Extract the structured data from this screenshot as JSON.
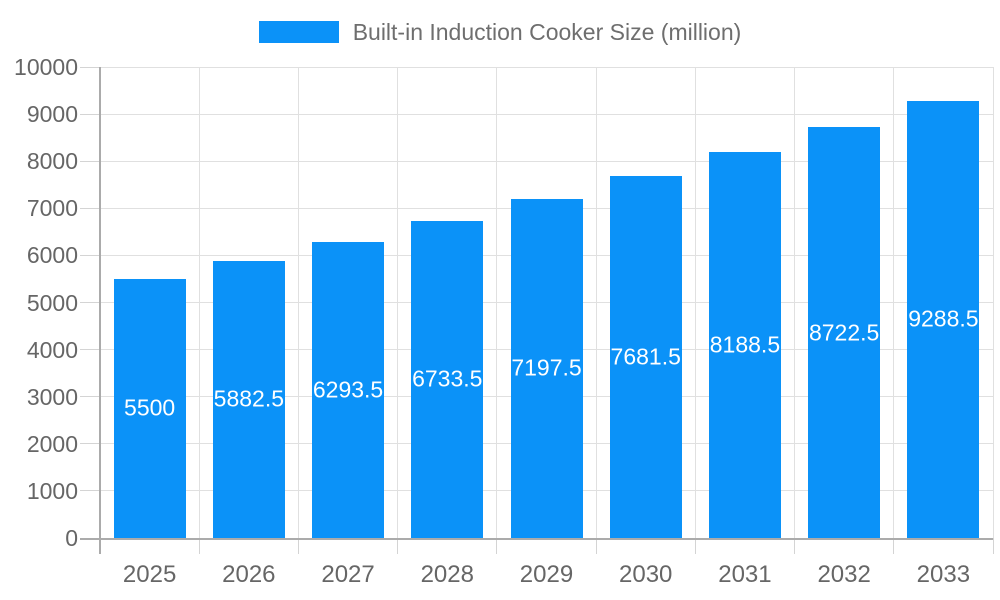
{
  "chart_data": {
    "type": "bar",
    "title": "Built-in Induction Cooker Size (million)",
    "categories": [
      "2025",
      "2026",
      "2027",
      "2028",
      "2029",
      "2030",
      "2031",
      "2032",
      "2033"
    ],
    "values": [
      5500,
      5882.5,
      6293.5,
      6733.5,
      7197.5,
      7681.5,
      8188.5,
      8722.5,
      9288.5
    ],
    "value_labels": [
      "5500",
      "5882.5",
      "6293.5",
      "6733.5",
      "7197.5",
      "7681.5",
      "8188.5",
      "8722.5",
      "9288.5"
    ],
    "ylim": [
      0,
      10000
    ],
    "yticks": [
      0,
      1000,
      2000,
      3000,
      4000,
      5000,
      6000,
      7000,
      8000,
      9000,
      10000
    ],
    "xlabel": "",
    "ylabel": "",
    "grid": true,
    "legend_position": "top",
    "value_label_position": "center-of-bar",
    "colors": {
      "bar": "#0b92f8",
      "grid": "#e0e0e0",
      "axis": "#ababab",
      "tick": "#d4d4d4",
      "tick_text": "#666666",
      "legend_text": "#6e6e6e",
      "value_text": "#ffffff",
      "background": "#ffffff"
    }
  }
}
